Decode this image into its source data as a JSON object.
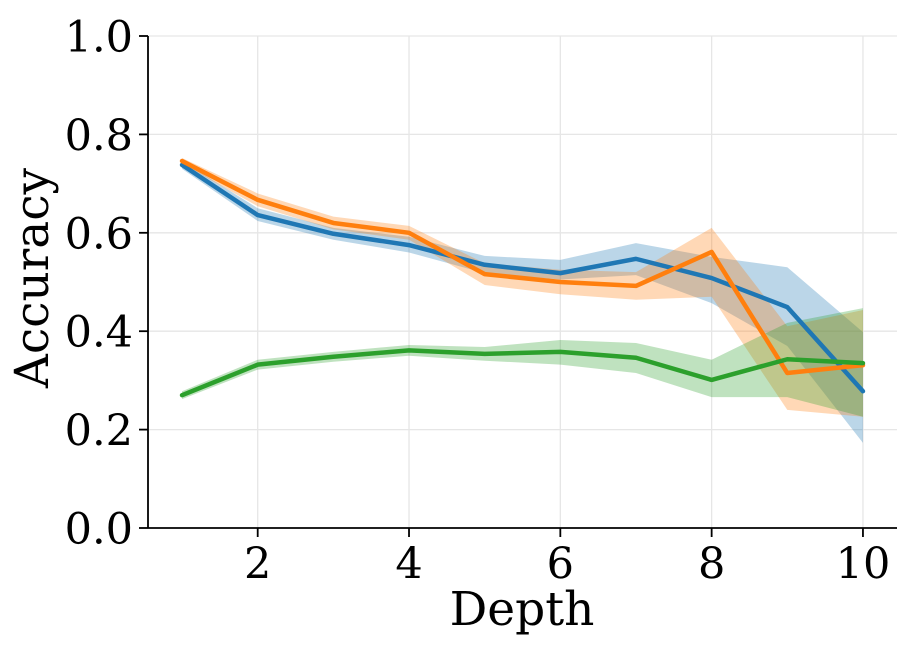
{
  "figure": {
    "background": "#ffffff"
  },
  "chart_data": {
    "type": "line",
    "title": "",
    "xlabel": "Depth",
    "ylabel": "Accuracy",
    "xlim": [
      0.55,
      10.45
    ],
    "ylim": [
      0.0,
      1.0
    ],
    "x_ticks": [
      2,
      4,
      6,
      8,
      10
    ],
    "x_tick_labels": [
      "2",
      "4",
      "6",
      "8",
      "10"
    ],
    "y_ticks": [
      0.0,
      0.2,
      0.4,
      0.6,
      0.8,
      1.0
    ],
    "y_tick_labels": [
      "0.0",
      "0.2",
      "0.4",
      "0.6",
      "0.8",
      "1.0"
    ],
    "grid": true,
    "grid_color": "#e6e6e6",
    "legend_position": "none",
    "band_alpha": 0.3,
    "line_width": 4.5,
    "x": [
      1,
      2,
      3,
      4,
      5,
      6,
      7,
      8,
      9,
      10
    ],
    "series": [
      {
        "name": "blue-series",
        "color": "#1f77b4",
        "values": [
          0.738,
          0.636,
          0.598,
          0.575,
          0.535,
          0.518,
          0.547,
          0.508,
          0.449,
          0.278
        ],
        "band_low": [
          0.73,
          0.624,
          0.586,
          0.56,
          0.518,
          0.505,
          0.514,
          0.457,
          0.37,
          0.173
        ],
        "band_high": [
          0.746,
          0.65,
          0.61,
          0.592,
          0.553,
          0.545,
          0.579,
          0.551,
          0.53,
          0.398
        ]
      },
      {
        "name": "orange-series",
        "color": "#ff7f0e",
        "values": [
          0.746,
          0.667,
          0.62,
          0.6,
          0.516,
          0.5,
          0.492,
          0.561,
          0.315,
          0.331
        ],
        "band_low": [
          0.74,
          0.654,
          0.607,
          0.586,
          0.494,
          0.475,
          0.464,
          0.47,
          0.24,
          0.226
        ],
        "band_high": [
          0.752,
          0.68,
          0.633,
          0.614,
          0.538,
          0.525,
          0.52,
          0.61,
          0.41,
          0.443
        ]
      },
      {
        "name": "green-series",
        "color": "#2ca02c",
        "values": [
          0.27,
          0.332,
          0.348,
          0.361,
          0.354,
          0.358,
          0.346,
          0.301,
          0.343,
          0.335
        ],
        "band_low": [
          0.262,
          0.322,
          0.338,
          0.35,
          0.34,
          0.332,
          0.315,
          0.266,
          0.266,
          0.226
        ],
        "band_high": [
          0.278,
          0.342,
          0.358,
          0.372,
          0.368,
          0.382,
          0.376,
          0.342,
          0.417,
          0.447
        ]
      }
    ]
  }
}
